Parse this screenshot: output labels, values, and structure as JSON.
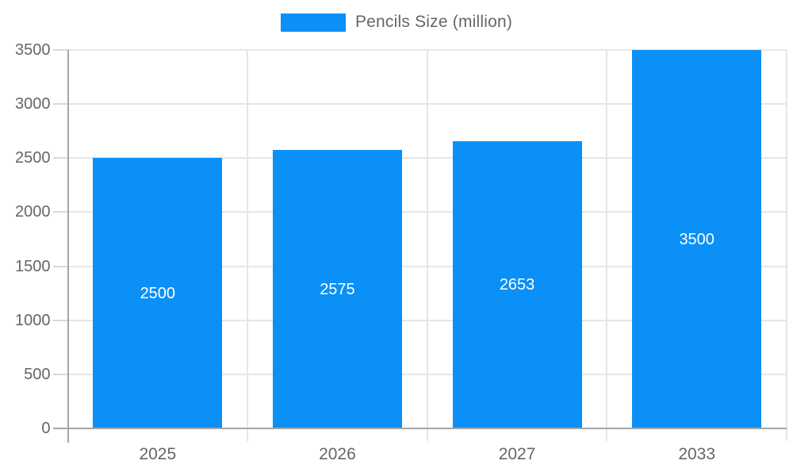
{
  "chart_data": {
    "type": "bar",
    "title": "",
    "legend": "Pencils Size (million)",
    "legend_position": "top-center",
    "categories": [
      "2025",
      "2026",
      "2027",
      "2033"
    ],
    "series": [
      {
        "name": "Pencils Size (million)",
        "values": [
          2500,
          2575,
          2653,
          3500
        ]
      }
    ],
    "value_labels": [
      "2500",
      "2575",
      "2653",
      "3500"
    ],
    "xlabel": "",
    "ylabel": "",
    "y_ticks": [
      "0",
      "500",
      "1000",
      "1500",
      "2000",
      "2500",
      "3000",
      "3500"
    ],
    "ylim": [
      0,
      3500
    ],
    "grid": true,
    "colors": {
      "bar": "#0a90f6",
      "value_label": "#ffffff",
      "axis_text": "#666666",
      "grid_line": "#e6e6e6",
      "tick_line": "#d9d9d9",
      "axis_line": "#a6a6a6",
      "background": "#ffffff"
    }
  }
}
